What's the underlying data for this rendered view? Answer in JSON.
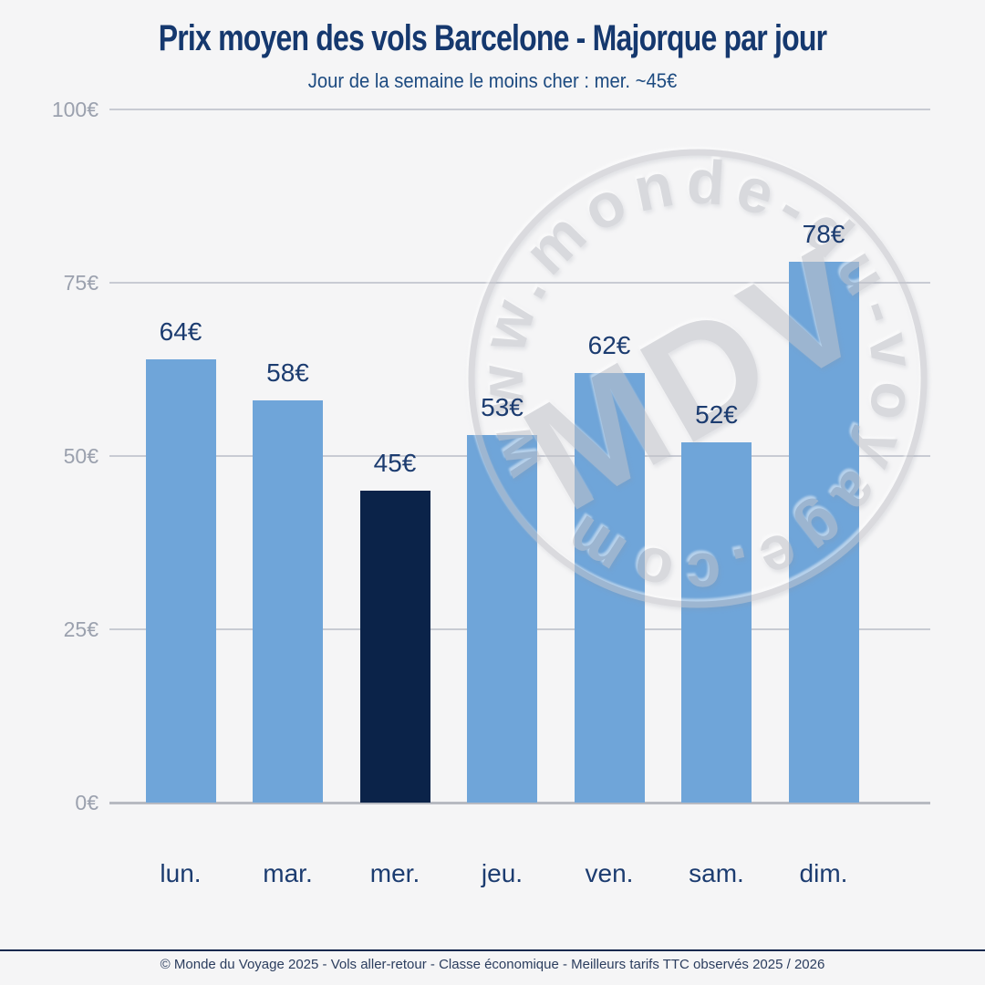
{
  "chart_data": {
    "type": "bar",
    "title": "Prix moyen des vols Barcelone - Majorque par jour",
    "subtitle": "Jour de la semaine le moins cher : mer. ~45€",
    "categories": [
      "lun.",
      "mar.",
      "mer.",
      "jeu.",
      "ven.",
      "sam.",
      "dim."
    ],
    "values": [
      64,
      58,
      45,
      53,
      62,
      52,
      78
    ],
    "value_labels": [
      "64€",
      "58€",
      "45€",
      "53€",
      "62€",
      "52€",
      "78€"
    ],
    "highlight_index": 2,
    "ylim": [
      0,
      100
    ],
    "yticks": [
      0,
      25,
      50,
      75,
      100
    ],
    "ytick_labels": [
      "0€",
      "25€",
      "50€",
      "75€",
      "100€"
    ],
    "grid": true,
    "legend": "none",
    "bar_color": "#6fa5d9",
    "highlight_color": "#0b2349"
  },
  "watermark": {
    "ring_text": "www.monde-du-voyage.com",
    "center_text": "MDV"
  },
  "footer": {
    "text": "© Monde du Voyage 2025 - Vols aller-retour - Classe économique - Meilleurs tarifs TTC observés 2025 / 2026"
  }
}
